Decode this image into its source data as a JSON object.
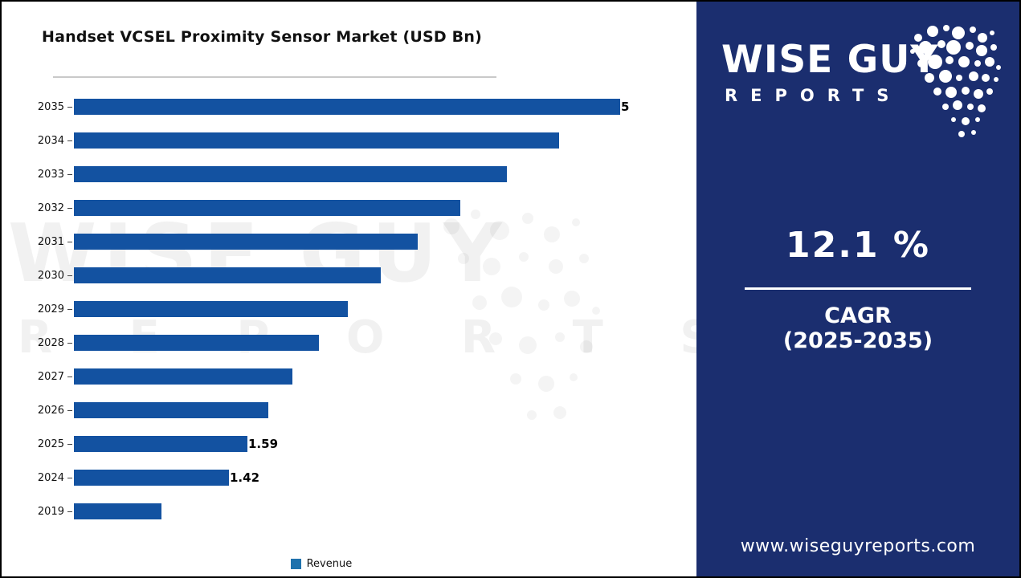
{
  "title": "Handset VCSEL Proximity Sensor Market (USD Bn)",
  "legend": {
    "label": "Revenue",
    "color": "#1f72ad"
  },
  "chart_data": {
    "type": "bar",
    "orientation": "horizontal",
    "title": "Handset VCSEL Proximity Sensor Market (USD Bn)",
    "xlabel": "",
    "ylabel": "",
    "xmax": 5.0,
    "bar_color": "#1352a1",
    "grid": false,
    "legend_position": "bottom-center",
    "categories": [
      "2035",
      "2034",
      "2033",
      "2032",
      "2031",
      "2030",
      "2029",
      "2028",
      "2027",
      "2026",
      "2025",
      "2024",
      "2019"
    ],
    "values": [
      5.0,
      4.44,
      3.96,
      3.54,
      3.15,
      2.81,
      2.51,
      2.24,
      2.0,
      1.78,
      1.59,
      1.42,
      0.8
    ],
    "value_labels": {
      "2035": "5",
      "2025": "1.59",
      "2024": "1.42"
    },
    "series_name": "Revenue"
  },
  "watermark": {
    "line1": "WISE GUY",
    "line2": "R E P O R T S"
  },
  "side_panel": {
    "background": "#1b2e6f",
    "logo_line1": "WISE GUY",
    "logo_line2": "REPORTS",
    "cagr_value": "12.1 %",
    "cagr_label": "CAGR",
    "cagr_period": "(2025-2035)",
    "website": "www.wiseguyreports.com"
  }
}
